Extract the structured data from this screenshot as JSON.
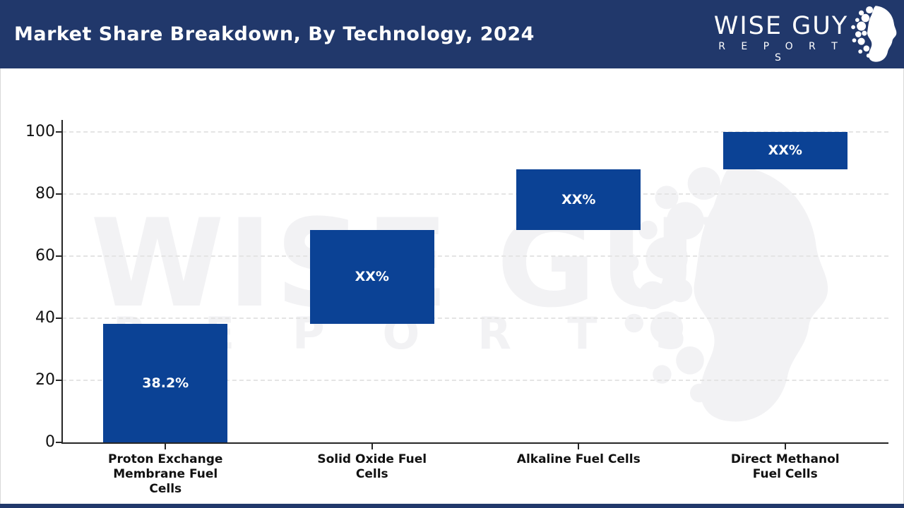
{
  "header": {
    "title": "Market Share Breakdown, By Technology, 2024",
    "logo": {
      "line1": "WISE GUY",
      "line2": "R E P O R T S"
    }
  },
  "watermark": {
    "line1": "WISE GUY",
    "line2": "REPORTS"
  },
  "colors": {
    "header_bg": "#21386b",
    "footer_bg": "#21386b",
    "bar": "#0b4295",
    "bar_label": "#ffffff",
    "grid": "#e4e4e4",
    "axis": "#262626",
    "watermark": "#f2f2f4"
  },
  "chart_data": {
    "type": "bar",
    "subtype": "waterfall",
    "title": "Market Share Breakdown, By Technology, 2024",
    "xlabel": "",
    "ylabel": "",
    "ylim": [
      0,
      105
    ],
    "yticks": [
      0,
      20,
      40,
      60,
      80,
      100
    ],
    "grid": "horizontal-dashed",
    "legend": "none",
    "categories": [
      "Proton Exchange Membrane Fuel Cells",
      "Solid Oxide Fuel Cells",
      "Alkaline Fuel Cells",
      "Direct Methanol Fuel Cells"
    ],
    "segments": [
      {
        "category": "Proton Exchange Membrane Fuel Cells",
        "start": 0,
        "end": 38.2,
        "value": 38.2,
        "label": "38.2%"
      },
      {
        "category": "Solid Oxide Fuel Cells",
        "start": 38.2,
        "end": 68.4,
        "value": 30.2,
        "label": "XX%"
      },
      {
        "category": "Alkaline Fuel Cells",
        "start": 68.4,
        "end": 88.0,
        "value": 19.6,
        "label": "XX%"
      },
      {
        "category": "Direct Methanol Fuel Cells",
        "start": 88.0,
        "end": 100.0,
        "value": 12.0,
        "label": "XX%"
      }
    ]
  }
}
